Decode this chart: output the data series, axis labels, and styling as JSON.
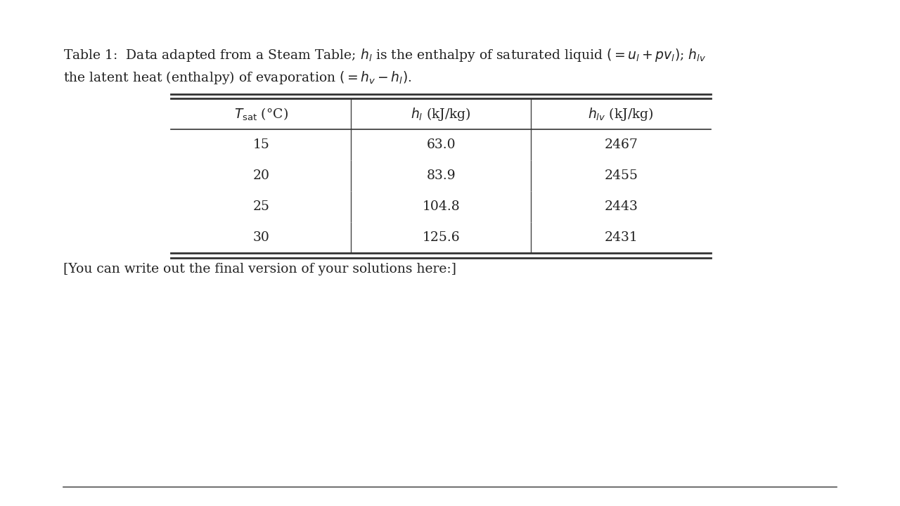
{
  "col_headers": [
    "$T_{\\mathrm{sat}}$ (°C)",
    "$h_l$ (kJ/kg)",
    "$h_{lv}$ (kJ/kg)"
  ],
  "rows": [
    [
      "15",
      "63.0",
      "2467"
    ],
    [
      "20",
      "83.9",
      "2455"
    ],
    [
      "25",
      "104.8",
      "2443"
    ],
    [
      "30",
      "125.6",
      "2431"
    ]
  ],
  "caption_line1": "Table 1:  Data adapted from a Steam Table; $h_l$ is the enthalpy of saturated liquid $(= u_l + pv_l)$; $h_{lv}$",
  "caption_line2": "the latent heat (enthalpy) of evaporation $(= h_v - h_l)$.",
  "footnote": "[You can write out the final version of your solutions here:]",
  "bg_color": "#ffffff",
  "text_color": "#222222",
  "font_size": 13.5,
  "table_font_size": 13.5
}
